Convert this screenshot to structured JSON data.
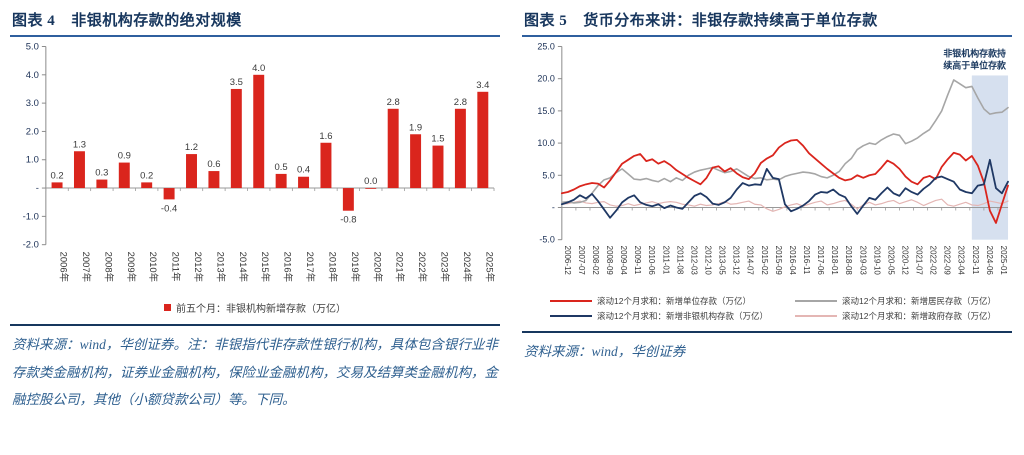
{
  "colors": {
    "title_navy": "#17365d",
    "title_rule_blue": "#2f5f9e",
    "divider_navy": "#17375e",
    "source_text_blue": "#2e5f8f",
    "axis_gray": "#999999",
    "label_dark": "#3a3a3a"
  },
  "left_panel": {
    "figure_label": "图表 4",
    "title": "非银机构存款的绝对规模",
    "legend_label": "前五个月：非银机构新增存款（万亿）",
    "source_note": "资料来源：wind，华创证券。注：非银指代非存款性银行机构，具体包含银行业非存款类金融机构，证券业金融机构，保险业金融机构，交易及结算类金融机构，金融控股公司，其他（小额贷款公司）等。下同。"
  },
  "right_panel": {
    "figure_label": "图表 5",
    "title": "货币分布来讲：非银存款持续高于单位存款",
    "source_note": "资料来源：wind，华创证券"
  },
  "chart_data": [
    {
      "type": "bar",
      "title": "前五个月：非银机构新增存款（万亿）",
      "categories": [
        "2006年",
        "2007年",
        "2008年",
        "2009年",
        "2010年",
        "2011年",
        "2012年",
        "2013年",
        "2014年",
        "2015年",
        "2016年",
        "2017年",
        "2018年",
        "2019年",
        "2020年",
        "2021年",
        "2022年",
        "2023年",
        "2024年",
        "2025年"
      ],
      "values": [
        0.2,
        1.3,
        0.3,
        0.9,
        0.2,
        -0.4,
        1.2,
        0.6,
        3.5,
        4.0,
        0.5,
        0.4,
        1.6,
        -0.8,
        0.0,
        2.8,
        1.9,
        1.5,
        2.8,
        3.4
      ],
      "ylim": [
        -2,
        5
      ],
      "ytick_values": [
        5,
        4,
        3,
        2,
        1,
        0,
        -1,
        -2
      ],
      "ytick_labels": [
        "5.0",
        "4.0",
        "3.0",
        "2.0",
        "1.0",
        "-",
        "-1.0",
        "-2.0"
      ],
      "bar_color": "#da251d",
      "grid": false,
      "legend_position": "bottom"
    },
    {
      "type": "line",
      "title": "货币分布来讲：非银存款持续高于单位存款",
      "x_start": "2006-12",
      "x_step_months": 3,
      "x_total_months": 222,
      "x_tick_labels": [
        "2006-12",
        "2007-07",
        "2008-02",
        "2008-09",
        "2009-04",
        "2009-11",
        "2010-06",
        "2011-01",
        "2011-08",
        "2012-03",
        "2012-10",
        "2013-05",
        "2013-12",
        "2014-07",
        "2015-02",
        "2015-09",
        "2016-04",
        "2016-11",
        "2017-06",
        "2018-01",
        "2018-08",
        "2019-03",
        "2019-10",
        "2020-05",
        "2020-12",
        "2021-07",
        "2022-02",
        "2022-09",
        "2023-04",
        "2023-11",
        "2024-06",
        "2025-01"
      ],
      "x_tick_step_months": 7,
      "ylim": [
        -5,
        25
      ],
      "ytick_values": [
        25,
        20,
        15,
        10,
        5,
        0,
        -5
      ],
      "ytick_labels": [
        "25.0",
        "20.0",
        "15.0",
        "10.0",
        "5.0",
        "-",
        "-5.0"
      ],
      "grid": false,
      "legend_position": "bottom",
      "annotation_lines": [
        "非银机构存款持",
        "续高于单位存款"
      ],
      "highlight_region": {
        "from_month": 204,
        "to_month": 222,
        "top_value": 20.5,
        "color": "#d6e0ef"
      },
      "series": [
        {
          "name": "滚动12个月求和：新增单位存款（万亿）",
          "color": "#da251d",
          "width": 1.8,
          "values": [
            2.2,
            2.4,
            2.8,
            3.3,
            3.6,
            3.8,
            3.7,
            3.1,
            4.2,
            5.5,
            6.8,
            7.4,
            8.0,
            8.3,
            7.2,
            7.5,
            6.8,
            7.2,
            6.6,
            5.8,
            5.2,
            4.6,
            4.1,
            3.6,
            4.6,
            6.2,
            6.4,
            5.6,
            6.1,
            5.3,
            4.7,
            4.4,
            5.3,
            6.9,
            7.6,
            8.1,
            9.3,
            10.0,
            10.4,
            10.5,
            9.6,
            8.4,
            7.6,
            6.8,
            6.0,
            5.3,
            4.6,
            4.2,
            4.4,
            5.0,
            4.6,
            5.0,
            5.2,
            6.2,
            7.3,
            6.8,
            6.0,
            4.8,
            4.0,
            3.6,
            4.6,
            4.9,
            4.4,
            6.3,
            7.5,
            8.5,
            8.2,
            7.3,
            8.0,
            6.5,
            3.9,
            -0.5,
            -2.4,
            0.5,
            3.4
          ]
        },
        {
          "name": "滚动12个月求和：新增居民存款（万亿）",
          "color": "#a6a6a6",
          "width": 1.6,
          "values": [
            0.8,
            0.9,
            0.7,
            0.8,
            1.1,
            2.2,
            3.4,
            4.3,
            4.6,
            5.4,
            6.0,
            5.2,
            4.4,
            4.3,
            4.5,
            4.2,
            4.0,
            4.5,
            4.0,
            4.6,
            4.2,
            5.0,
            5.5,
            5.8,
            6.0,
            6.2,
            5.8,
            5.4,
            5.6,
            6.0,
            5.4,
            4.8,
            4.5,
            4.6,
            4.3,
            4.4,
            4.3,
            4.8,
            5.1,
            5.3,
            5.5,
            5.4,
            5.2,
            4.8,
            4.6,
            5.0,
            5.6,
            6.8,
            7.6,
            9.0,
            9.6,
            10.0,
            9.8,
            10.5,
            11.0,
            11.4,
            11.2,
            9.9,
            10.3,
            10.8,
            11.5,
            12.1,
            13.5,
            15.0,
            17.5,
            19.8,
            19.2,
            18.6,
            18.8,
            17.0,
            15.3,
            14.5,
            14.7,
            14.8,
            15.5
          ]
        },
        {
          "name": "滚动12个月求和：新增非银机构存款（万亿）",
          "color": "#1f3864",
          "width": 1.8,
          "values": [
            0.5,
            0.8,
            1.2,
            1.9,
            1.4,
            2.1,
            1.0,
            -0.3,
            -1.6,
            -0.5,
            0.8,
            1.5,
            1.9,
            0.8,
            0.4,
            0.2,
            0.5,
            -0.1,
            0.3,
            0.0,
            -0.2,
            0.8,
            1.8,
            2.2,
            1.6,
            0.6,
            0.4,
            0.8,
            1.5,
            2.8,
            3.8,
            3.4,
            3.6,
            3.5,
            6.0,
            4.6,
            4.4,
            0.5,
            -0.6,
            -0.2,
            0.3,
            1.0,
            2.0,
            2.4,
            2.3,
            2.8,
            2.0,
            1.6,
            0.2,
            -1.0,
            0.3,
            1.5,
            1.2,
            2.2,
            3.1,
            2.2,
            1.8,
            3.0,
            2.4,
            2.0,
            2.9,
            3.6,
            4.6,
            4.8,
            4.4,
            4.0,
            2.8,
            2.4,
            2.2,
            3.4,
            3.6,
            7.4,
            3.0,
            2.2,
            4.0
          ]
        },
        {
          "name": "滚动12个月求和：新增政府存款（万亿）",
          "color": "#e4b6b4",
          "width": 1.2,
          "values": [
            0.5,
            0.6,
            0.8,
            1.0,
            0.7,
            0.6,
            0.8,
            0.9,
            0.4,
            0.2,
            0.3,
            0.6,
            0.3,
            0.5,
            0.7,
            0.9,
            0.6,
            0.8,
            0.9,
            0.8,
            0.5,
            0.4,
            0.2,
            0.5,
            0.3,
            0.4,
            0.6,
            0.9,
            0.5,
            0.6,
            0.8,
            1.0,
            0.5,
            0.4,
            -0.2,
            -0.6,
            -0.3,
            0.1,
            0.4,
            0.6,
            0.2,
            0.5,
            0.8,
            1.0,
            0.4,
            0.6,
            0.9,
            1.1,
            0.5,
            -0.2,
            0.4,
            0.8,
            0.4,
            0.6,
            0.9,
            1.1,
            0.6,
            0.9,
            1.2,
            0.8,
            0.3,
            0.7,
            1.1,
            1.3,
            0.4,
            0.2,
            0.5,
            0.8,
            0.4,
            0.3,
            0.6,
            1.0,
            0.8,
            0.6,
            1.0
          ]
        }
      ]
    }
  ]
}
